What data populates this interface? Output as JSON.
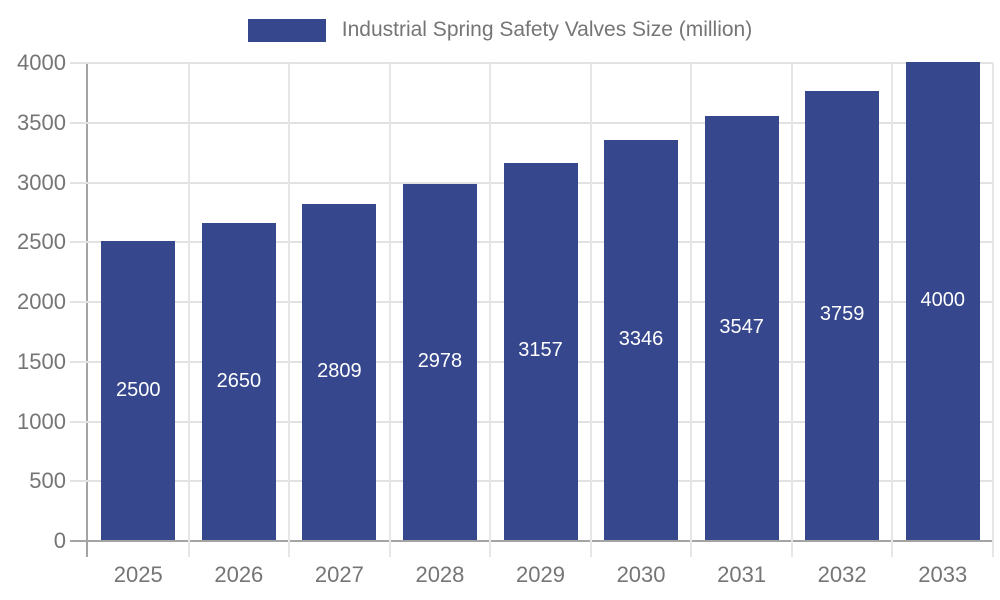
{
  "legend": {
    "label": "Industrial Spring Safety Valves Size (million)",
    "swatch_color": "#36478D"
  },
  "chart_data": {
    "type": "bar",
    "title": "",
    "xlabel": "",
    "ylabel": "",
    "series_name": "Industrial Spring Safety Valves Size (million)",
    "categories": [
      "2025",
      "2026",
      "2027",
      "2028",
      "2029",
      "2030",
      "2031",
      "2032",
      "2033"
    ],
    "values": [
      2500,
      2650,
      2809,
      2978,
      3157,
      3346,
      3547,
      3759,
      4000
    ],
    "value_labels": [
      "2500",
      "2650",
      "2809",
      "2978",
      "3157",
      "3346",
      "3547",
      "3759",
      "4000"
    ],
    "ylim": [
      0,
      4000
    ],
    "ytick_step": 500,
    "yticks": [
      0,
      500,
      1000,
      1500,
      2000,
      2500,
      3000,
      3500,
      4000
    ],
    "grid": true,
    "legend_position": "top-center",
    "bar_label_position": "inside-center"
  },
  "colors": {
    "bar": "#36478D",
    "bar_label": "#ffffff",
    "axis_text": "#757575",
    "legend_text": "#757575",
    "gridline": "#e2e2e2",
    "axis_line": "#a3a3a3",
    "background": "#ffffff"
  }
}
